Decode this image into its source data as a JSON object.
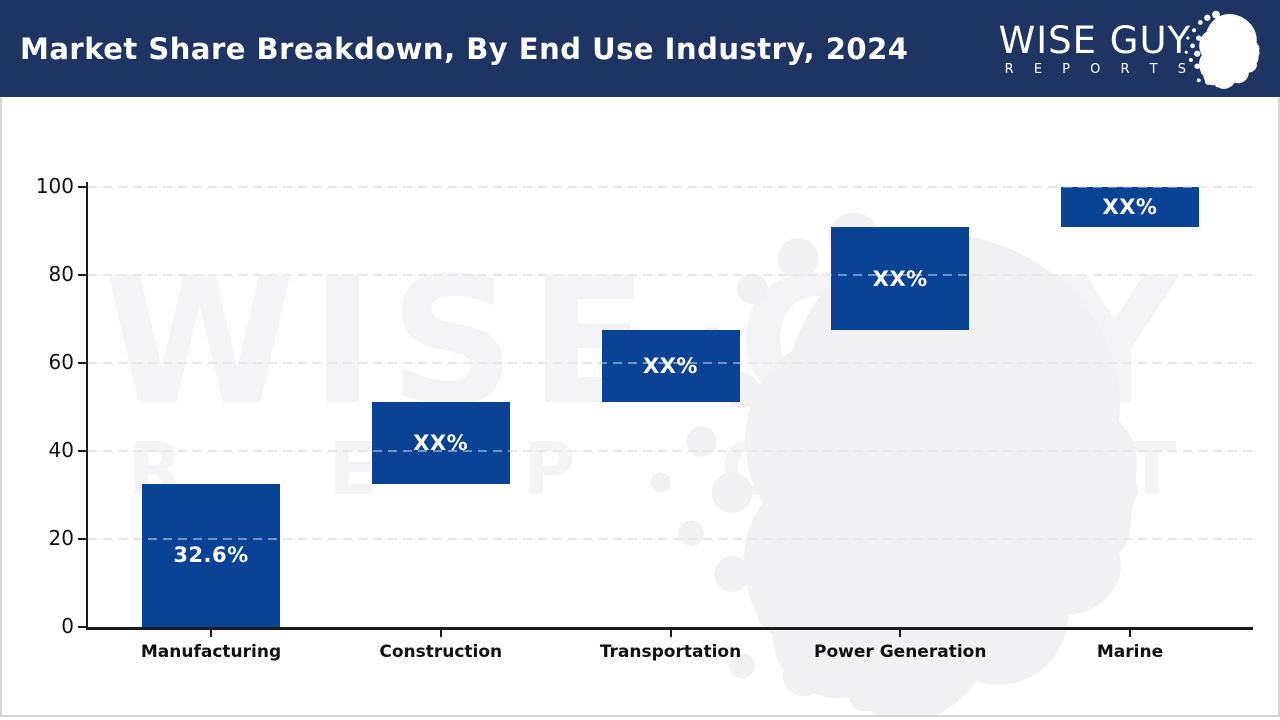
{
  "header": {
    "title": "Market Share Breakdown, By End Use Industry, 2024",
    "logo": {
      "line1": "WISE GUY",
      "line2": "R E P O R T S"
    }
  },
  "watermark": {
    "line1": "WISE GUY",
    "line2": "R E P O R T S"
  },
  "colors": {
    "header_bg": "#1e3563",
    "bar_blue": "#0a4296",
    "gridline": "#d9d9d9",
    "axis": "#1c1c1c",
    "watermark": "#f4f4f6"
  },
  "chart_data": {
    "type": "bar",
    "subtype": "waterfall",
    "title": "Market Share Breakdown, By End Use Industry, 2024",
    "xlabel": "",
    "ylabel": "",
    "categories": [
      "Manufacturing",
      "Construction",
      "Transportation",
      "Power Generation",
      "Marine"
    ],
    "bars": [
      {
        "category": "Manufacturing",
        "label": "32.6%",
        "value": 32.6,
        "start": 0,
        "end": 32.6
      },
      {
        "category": "Construction",
        "label": "XX%",
        "value": 18.6,
        "start": 32.6,
        "end": 51.2
      },
      {
        "category": "Transportation",
        "label": "XX%",
        "value": 16.2,
        "start": 51.2,
        "end": 67.4
      },
      {
        "category": "Power Generation",
        "label": "XX%",
        "value": 23.4,
        "start": 67.4,
        "end": 90.8
      },
      {
        "category": "Marine",
        "label": "XX%",
        "value": 9.2,
        "start": 90.8,
        "end": 100
      }
    ],
    "yticks": [
      0,
      20,
      40,
      60,
      80,
      100
    ],
    "ylim": [
      0,
      101
    ],
    "grid": "horizontal-dashed",
    "legend": "none",
    "bar_color": "#0a4296"
  }
}
